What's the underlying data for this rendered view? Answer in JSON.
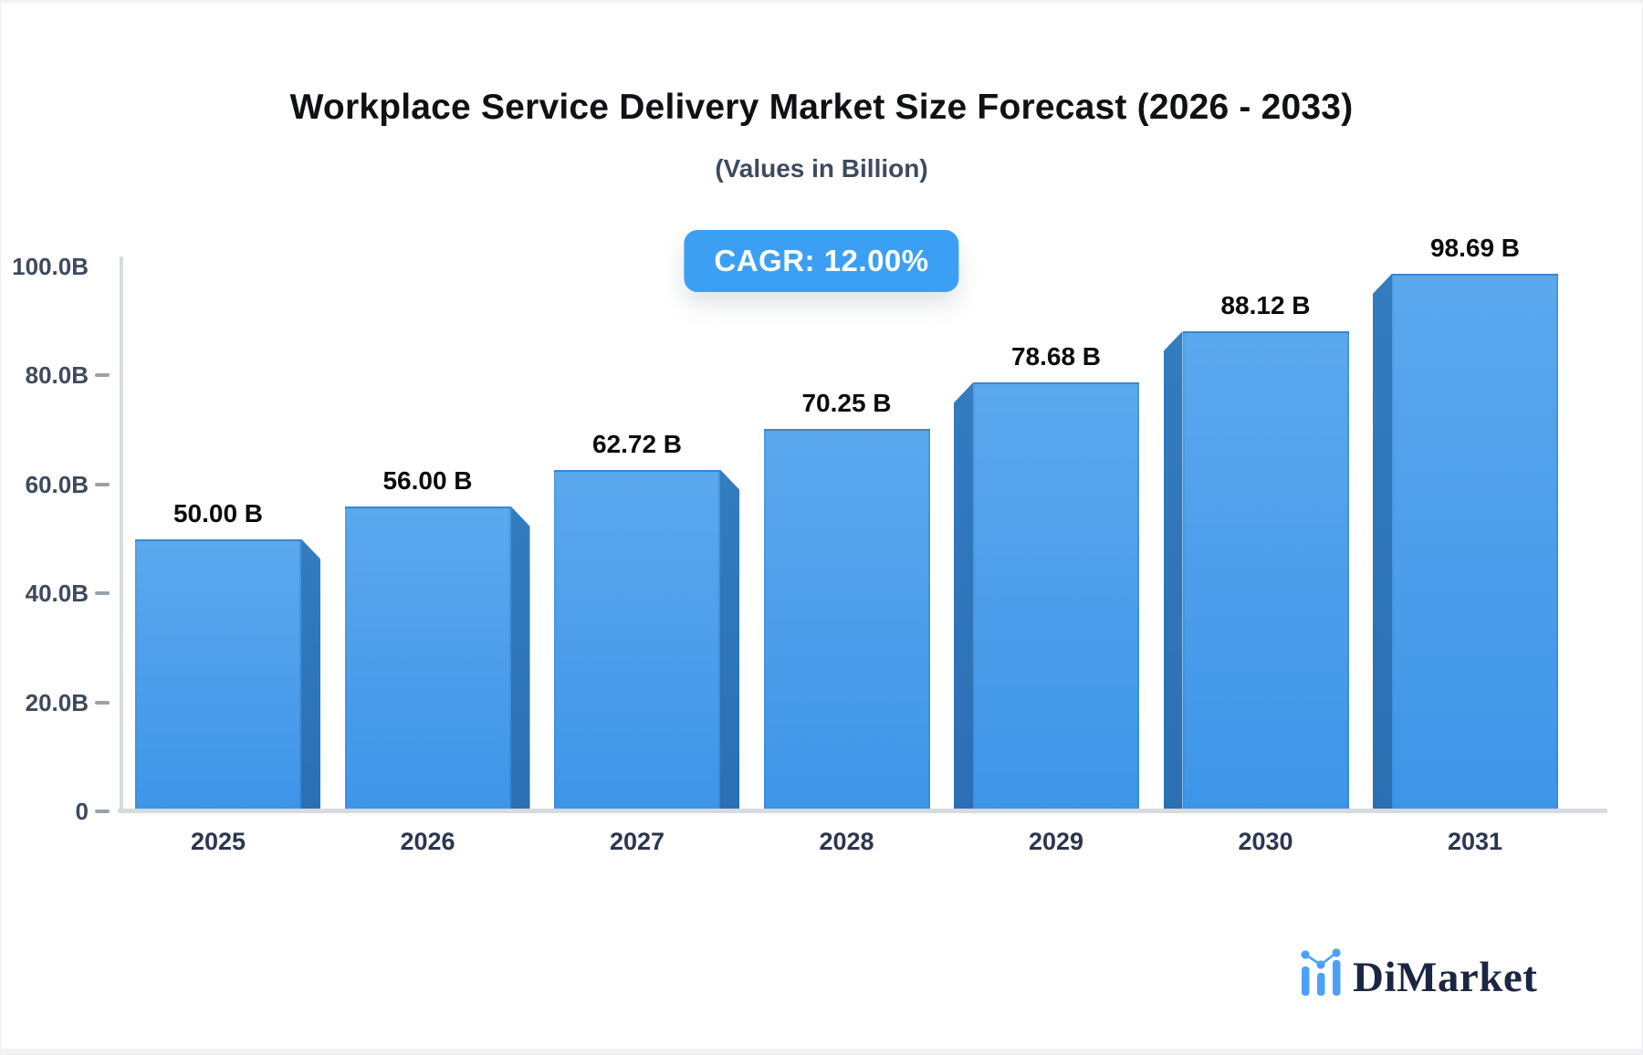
{
  "header": {
    "title": "Workplace Service Delivery Market Size Forecast (2026 - 2033)",
    "subtitle": "(Values in Billion)",
    "cagr_badge": "CAGR: 12.00%"
  },
  "chart_data": {
    "type": "bar",
    "title": "Workplace Service Delivery Market Size Forecast (2026 - 2033)",
    "subtitle": "(Values in Billion)",
    "categories": [
      "2025",
      "2026",
      "2027",
      "2028",
      "2029",
      "2030",
      "2031"
    ],
    "values": [
      50.0,
      56.0,
      62.72,
      70.25,
      78.68,
      88.12,
      98.69
    ],
    "value_labels": [
      "50.00 B",
      "56.00 B",
      "62.72 B",
      "70.25 B",
      "78.68 B",
      "88.12 B",
      "98.69 B"
    ],
    "cagr_label": "CAGR: 12.00%",
    "xlabel": "",
    "ylabel": "",
    "ylim": [
      0,
      100
    ],
    "y_ticks": [
      {
        "value": 100,
        "label": "100.0B"
      },
      {
        "value": 80,
        "label": "80.0B"
      },
      {
        "value": 60,
        "label": "60.0B"
      },
      {
        "value": 40,
        "label": "40.0B"
      },
      {
        "value": 20,
        "label": "20.0B"
      },
      {
        "value": 0,
        "label": "0"
      }
    ],
    "grid": false,
    "legend": false,
    "bar_style": "3d",
    "colors": {
      "bar_face_top": "#5BA8EE",
      "bar_face_bottom": "#3E95E8",
      "bar_face_edge": "#3A86CE",
      "bar_side_top": "#337CC0",
      "bar_side_bottom": "#2B6FB2",
      "badge_bg": "#3BA0F3",
      "badge_text": "#FFFFFF",
      "axis_line": "#D7DADE",
      "tick_dash": "#9AA1AB",
      "tick_text": "#3E4A5C",
      "value_text": "#0B0B0B",
      "category_text": "#2B3650"
    }
  },
  "branding": {
    "logo_text": "DiMarket",
    "logo_text_color": "#1B2742",
    "logo_mark_color": "#4BA1F5"
  }
}
